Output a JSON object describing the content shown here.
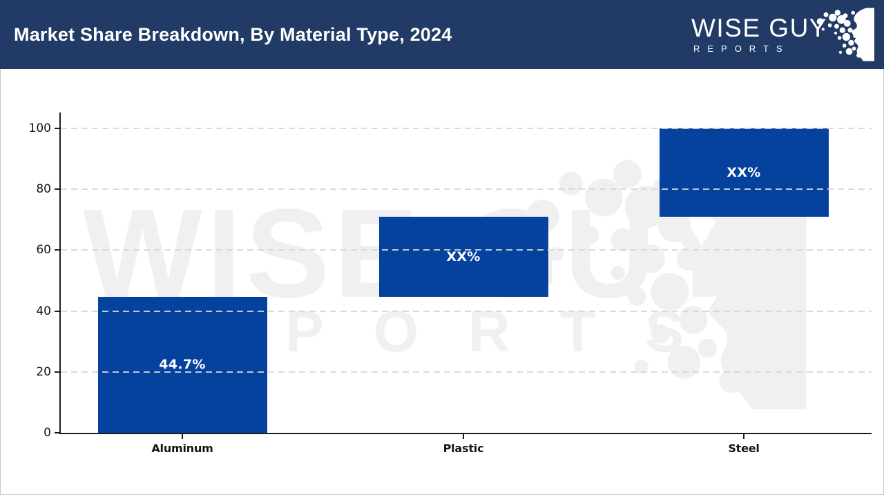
{
  "header": {
    "title": "Market Share Breakdown, By Material Type, 2024",
    "logo": {
      "line1": "WISE GUY",
      "line2": "REPORTS"
    }
  },
  "watermark": {
    "line1": "WISE GUY",
    "line2": "REPORTS"
  },
  "chart_data": {
    "type": "bar",
    "variant": "waterfall",
    "title": "Market Share Breakdown, By Material Type, 2024",
    "categories": [
      "Aluminum",
      "Plastic",
      "Steel"
    ],
    "bars": [
      {
        "category": "Aluminum",
        "start": 0,
        "end": 44.7,
        "label": "44.7%"
      },
      {
        "category": "Plastic",
        "start": 44.7,
        "end": 71,
        "label": "XX%"
      },
      {
        "category": "Steel",
        "start": 71,
        "end": 100,
        "label": "XX%"
      }
    ],
    "ylim": [
      0,
      100
    ],
    "yticks": [
      0,
      20,
      40,
      60,
      80,
      100
    ],
    "xlabel": "",
    "ylabel": "",
    "grid": "horizontal-dashed",
    "legend": "none",
    "bar_color": "#05429e",
    "bar_label_color": "#ffffff"
  },
  "colors": {
    "header_bg": "#213a66",
    "bar": "#05429e",
    "watermark": "#f0f0f3",
    "gridline": "#d6d6d6",
    "axis": "#1c1c1c"
  }
}
